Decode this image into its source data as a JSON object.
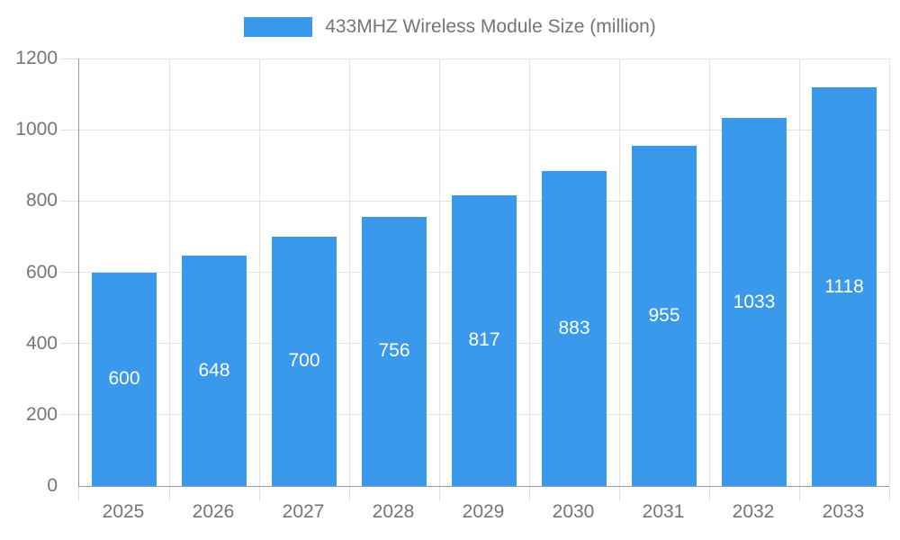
{
  "legend": {
    "label": "433MHZ Wireless Module Size (million)"
  },
  "colors": {
    "bar": "#3B99EC",
    "grid": "#e3e3e3",
    "axis": "#999999",
    "text": "#757575",
    "bar_label": "#ffffff",
    "background": "#ffffff"
  },
  "chart_data": {
    "type": "bar",
    "title": "433MHZ Wireless Module Size (million)",
    "series_name": "433MHZ Wireless Module Size (million)",
    "categories": [
      "2025",
      "2026",
      "2027",
      "2028",
      "2029",
      "2030",
      "2031",
      "2032",
      "2033"
    ],
    "values": [
      600,
      648,
      700,
      756,
      817,
      883,
      955,
      1033,
      1118
    ],
    "data_labels": [
      "600",
      "648",
      "700",
      "756",
      "817",
      "883",
      "955",
      "1033",
      "1118"
    ],
    "data_labels_position": "inside-center",
    "xlabel": "",
    "ylabel": "",
    "ylim": [
      0,
      1200
    ],
    "y_ticks": [
      0,
      200,
      400,
      600,
      800,
      1000,
      1200
    ],
    "grid": true,
    "legend_position": "top-center"
  }
}
